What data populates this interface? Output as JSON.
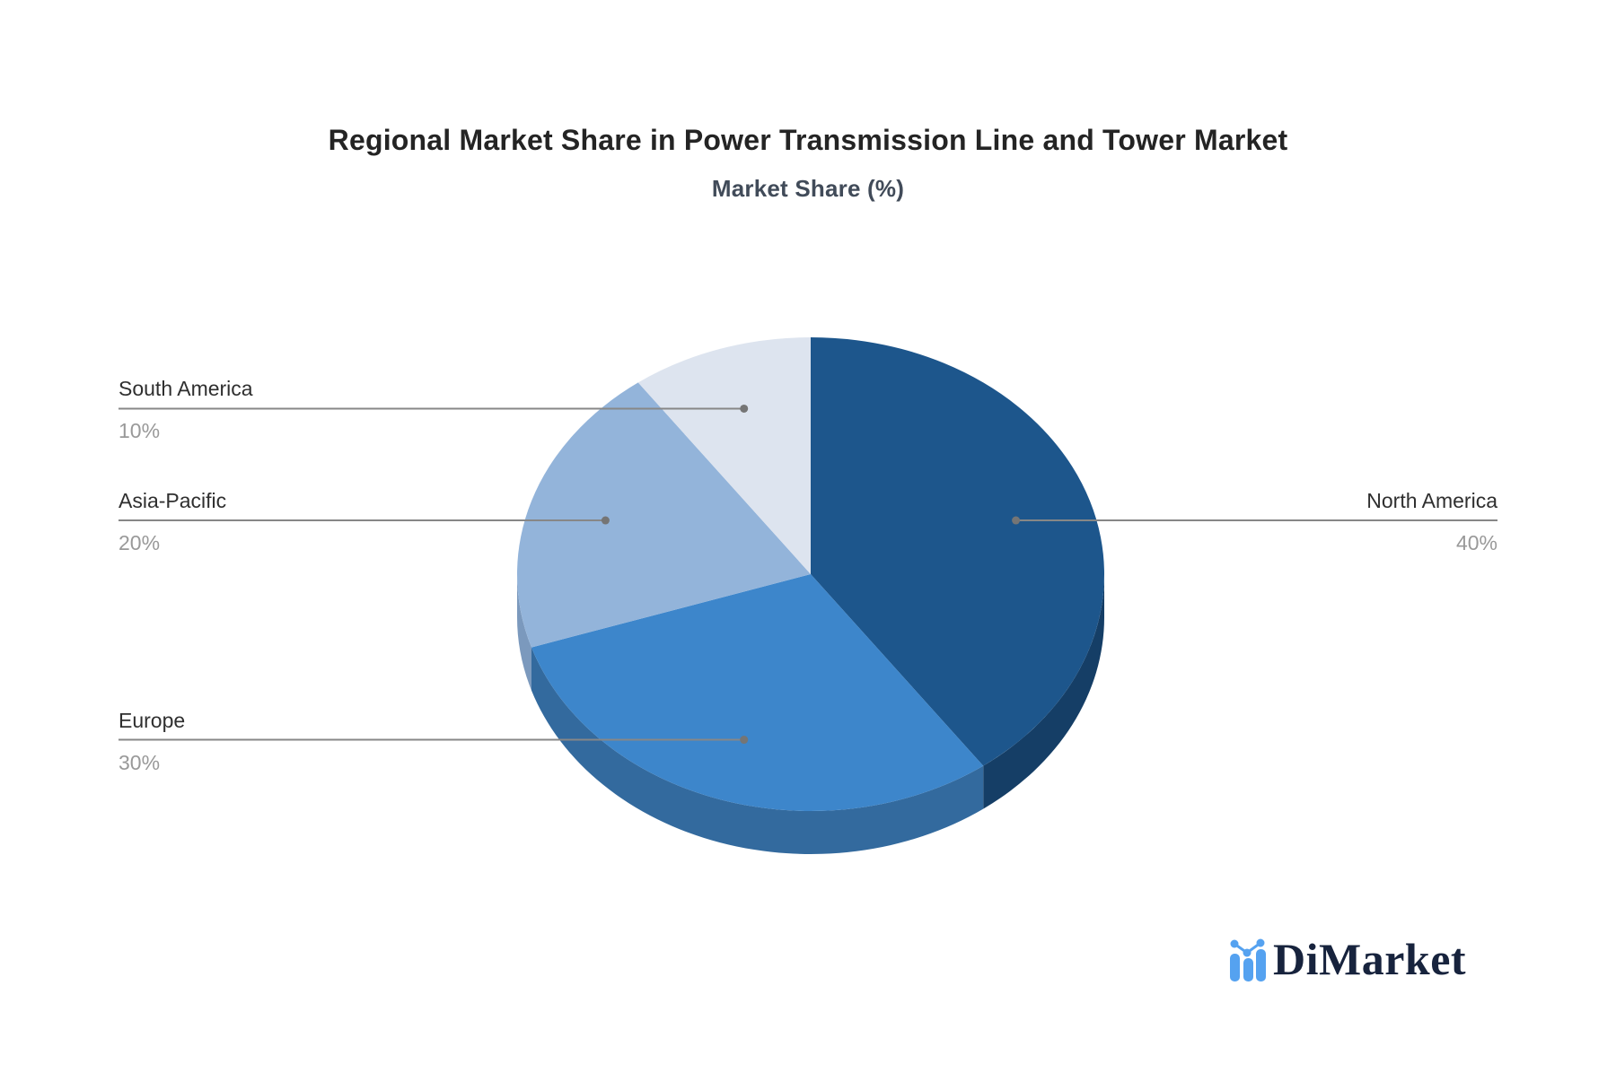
{
  "chart_data": {
    "type": "pie",
    "three_d": true,
    "start_angle": "top",
    "direction": "clockwise",
    "title": "Regional Market Share in Power Transmission Line and Tower Market",
    "subtitle": "Market Share (%)",
    "unit": "%",
    "legend_position": "none",
    "categories": [
      "North America",
      "Europe",
      "Asia-Pacific",
      "South America"
    ],
    "values": [
      40,
      30,
      20,
      10
    ],
    "series": [
      {
        "name": "North America",
        "value": 40,
        "value_label": "40%",
        "color": "#1d568c",
        "side_color": "#153e66",
        "label_side": "right"
      },
      {
        "name": "Europe",
        "value": 30,
        "value_label": "30%",
        "color": "#3d86cb",
        "side_color": "#336a9e",
        "label_side": "left"
      },
      {
        "name": "Asia-Pacific",
        "value": 20,
        "value_label": "20%",
        "color": "#93b4da",
        "side_color": "#7b99bd",
        "label_side": "left"
      },
      {
        "name": "South America",
        "value": 10,
        "value_label": "10%",
        "color": "#dde4ef",
        "side_color": "#b9c3d6",
        "label_side": "left"
      }
    ]
  },
  "branding": {
    "logo_text": "DiMarket",
    "logo_icon": "bar-line-chart-icon"
  },
  "colors": {
    "background": "#ffffff",
    "title_text": "#242424",
    "subtitle_text": "#414b59",
    "label_text": "#2f2f2f",
    "value_text": "#999999",
    "leader_line": "#878787",
    "leader_dot": "#757575",
    "logo_text": "#17233d",
    "logo_icon_blue": "#55a2f0"
  }
}
